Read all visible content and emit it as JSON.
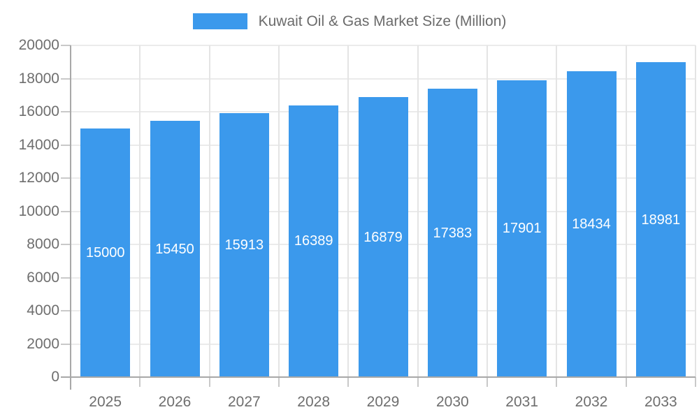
{
  "chart_data": {
    "type": "bar",
    "title": "Kuwait Oil & Gas Market Size (Million)",
    "categories": [
      "2025",
      "2026",
      "2027",
      "2028",
      "2029",
      "2030",
      "2031",
      "2032",
      "2033"
    ],
    "values": [
      15000,
      15450,
      15913,
      16389,
      16879,
      17383,
      17901,
      18434,
      18981
    ],
    "xlabel": "",
    "ylabel": "",
    "ylim": [
      0,
      20000
    ],
    "y_ticks": [
      0,
      2000,
      4000,
      6000,
      8000,
      10000,
      12000,
      14000,
      16000,
      18000,
      20000
    ],
    "grid": "on",
    "legend_position": "top",
    "data_labels": "inside-center-white"
  },
  "colors": {
    "bar": "#3b99ec",
    "axis_text": "#6e6e6e",
    "legend_text": "#6b6b6b",
    "grid_h": "#ebebeb",
    "grid_v": "#e4e4e4",
    "axis_line": "#a8a8a8",
    "tick": "#c9c9c9",
    "bar_label": "#ffffff"
  }
}
